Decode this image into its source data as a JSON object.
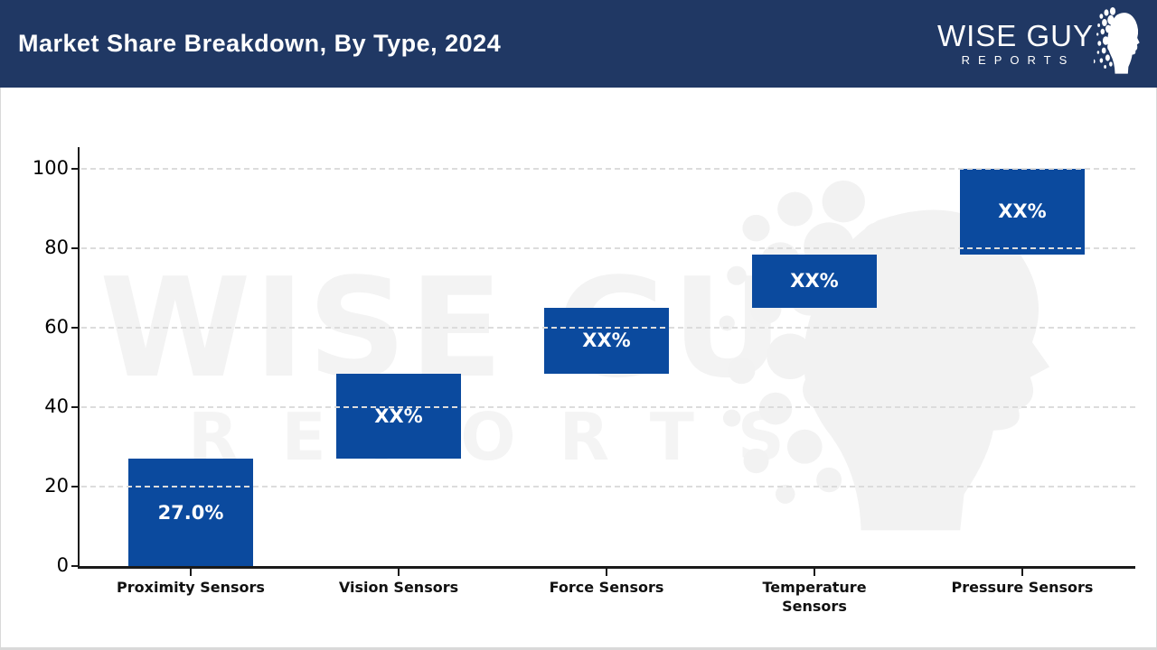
{
  "header": {
    "title": "Market Share Breakdown, By Type, 2024",
    "logo": {
      "name": "WISE GUY",
      "sub": "REPORTS"
    }
  },
  "watermark": {
    "line1": "WISE GUY",
    "line2": "REPORTS"
  },
  "colors": {
    "header_bg": "#203864",
    "bar": "#0b4a9e",
    "grid": "#dcdcdc",
    "axis": "#1a1a1a",
    "watermark": "#f3f3f3",
    "page_border": "#d9d9d9"
  },
  "chart_data": {
    "type": "bar",
    "subtype": "waterfall-floating-bars",
    "title": "Market Share Breakdown, By Type, 2024",
    "categories": [
      "Proximity Sensors",
      "Vision Sensors",
      "Force Sensors",
      "Temperature Sensors",
      "Pressure Sensors"
    ],
    "series": [
      {
        "name": "Market Share %",
        "starts": [
          0,
          27,
          48.5,
          65,
          78.5
        ],
        "values": [
          27,
          21.5,
          16.5,
          13.5,
          21.5
        ]
      }
    ],
    "bar_labels": [
      "27.0%",
      "XX%",
      "XX%",
      "XX%",
      "XX%"
    ],
    "yticks": [
      0,
      20,
      40,
      60,
      80,
      100
    ],
    "ylim": [
      0,
      100
    ],
    "xlabel": "",
    "ylabel": "",
    "grid": "horizontal-dashed",
    "legend": "none",
    "bar_color": "#0b4a9e"
  }
}
